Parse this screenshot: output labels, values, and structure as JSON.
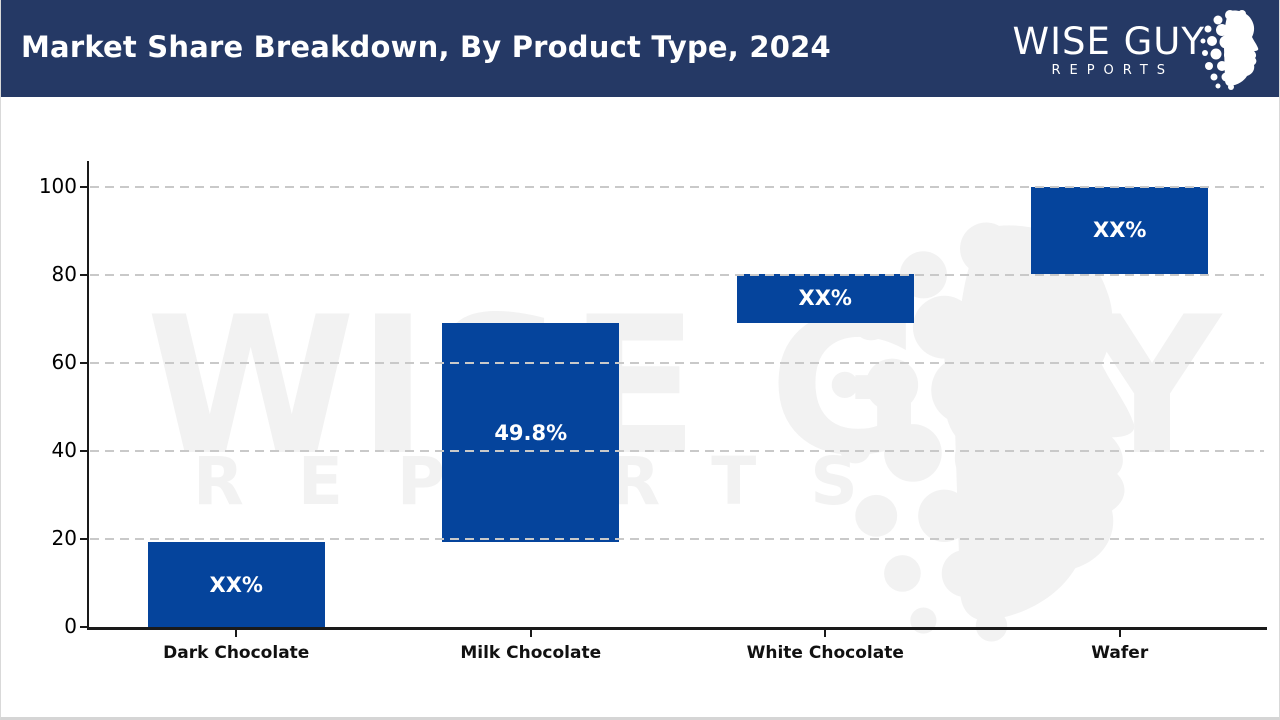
{
  "header": {
    "title": "Market Share Breakdown, By Product Type, 2024",
    "bg_color": "#253965",
    "logo": {
      "line1": "WISE GUY",
      "line2": "REPORTS"
    }
  },
  "watermark": {
    "line1": "WISE GUY",
    "line2": "REPORTS",
    "color": "#f2f2f2"
  },
  "chart_data": {
    "type": "bar",
    "subtype": "waterfall",
    "title": "Market Share Breakdown, By Product Type, 2024",
    "categories": [
      "Dark Chocolate",
      "Milk Chocolate",
      "White Chocolate",
      "Wafer"
    ],
    "segments": [
      {
        "category": "Dark Chocolate",
        "start": 0,
        "end": 19.3,
        "label": "XX%"
      },
      {
        "category": "Milk Chocolate",
        "start": 19.3,
        "end": 69.1,
        "label": "49.8%",
        "value": 49.8
      },
      {
        "category": "White Chocolate",
        "start": 69.1,
        "end": 80.3,
        "label": "XX%"
      },
      {
        "category": "Wafer",
        "start": 80.3,
        "end": 100,
        "label": "XX%"
      }
    ],
    "ylim": [
      0,
      100
    ],
    "yticks": [
      0,
      20,
      40,
      60,
      80,
      100
    ],
    "xlabel": "",
    "ylabel": "",
    "grid": "horizontal-dashed",
    "gridline_color": "#c9c9c9",
    "legend": null,
    "bar_color": "#05449C",
    "bar_label_color": "#ffffff",
    "axis_color": "#1a1a1a"
  }
}
